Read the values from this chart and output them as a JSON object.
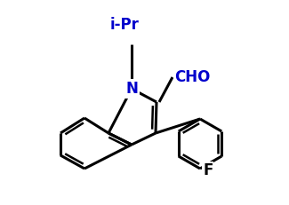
{
  "background_color": "#ffffff",
  "line_color": "#000000",
  "label_color_blue": "#0000cc",
  "label_color_black": "#000000",
  "line_width": 2.2,
  "inner_lw": 1.8,
  "figsize": [
    3.25,
    2.31
  ],
  "dpi": 100,
  "xlim": [
    0,
    325
  ],
  "ylim": [
    0,
    231
  ]
}
